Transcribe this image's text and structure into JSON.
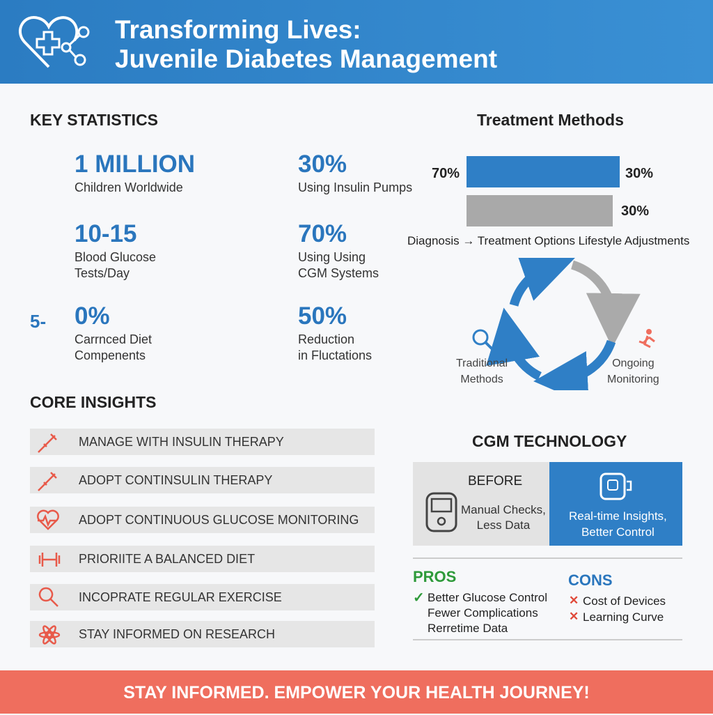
{
  "header": {
    "title_lines": [
      "Transforming Lives:",
      "Juvenile Diabetes Management"
    ]
  },
  "key_statistics": {
    "heading": "KEY STATISTICS",
    "items": [
      {
        "icon_text": null,
        "value": "1 MILLION",
        "label": [
          "Children Worldwide"
        ]
      },
      {
        "icon_text": null,
        "value": "30%",
        "label": [
          "Using Insulin Pumps"
        ]
      },
      {
        "icon_text": null,
        "value": "10-15",
        "label": [
          "Blood Glucose",
          "Tests/Day"
        ]
      },
      {
        "icon_text": null,
        "value": "70%",
        "label": [
          "Using Using",
          "CGM Systems"
        ]
      },
      {
        "icon_text": "5-",
        "value": "0%",
        "label": [
          "Carrnced Diet",
          "Compenents"
        ]
      },
      {
        "icon_text": null,
        "value": "50%",
        "label": [
          "Reduction",
          "in Fluctations"
        ]
      }
    ]
  },
  "treatment_methods": {
    "heading": "Treatment Methods",
    "bar1_left": "70%",
    "bar1_right": "30%",
    "bar2_right": "30%",
    "caption": "Diagnosis → Treatment Options  Lifestyle Adjustments",
    "cycle_left": [
      "Traditional",
      "Methods"
    ],
    "cycle_right": [
      "Ongoing",
      "Monitoring"
    ]
  },
  "core_insights": {
    "heading": "CORE INSIGHTS",
    "items": [
      "MANAGE WITH INSULIN THERAPY",
      "ADOPT CONTINSULIN THERAPY",
      "ADOPT CONTINUOUS GLUCOSE MONITORING",
      "PRIORIITE A BALANCED DIET",
      "INCOPRATE REGULAR EXERCISE",
      "STAY INFORMED ON RESEARCH"
    ]
  },
  "cgm": {
    "heading": "CGM TECHNOLOGY",
    "before_title": "BEFORE",
    "before_text": [
      "Manual Checks,",
      "Less Data"
    ],
    "after_text": [
      "Real-time Insights,",
      "Better Control"
    ]
  },
  "pros": {
    "heading": "PROS",
    "items": [
      "Better Glucose Control",
      "Fewer Complications",
      "Rerretime Data"
    ]
  },
  "cons": {
    "heading": "CONS",
    "items": [
      "Cost of Devices",
      "Learning Curve"
    ]
  },
  "footer": {
    "text": "STAY INFORMED. EMPOWER YOUR HEALTH JOURNEY!"
  }
}
